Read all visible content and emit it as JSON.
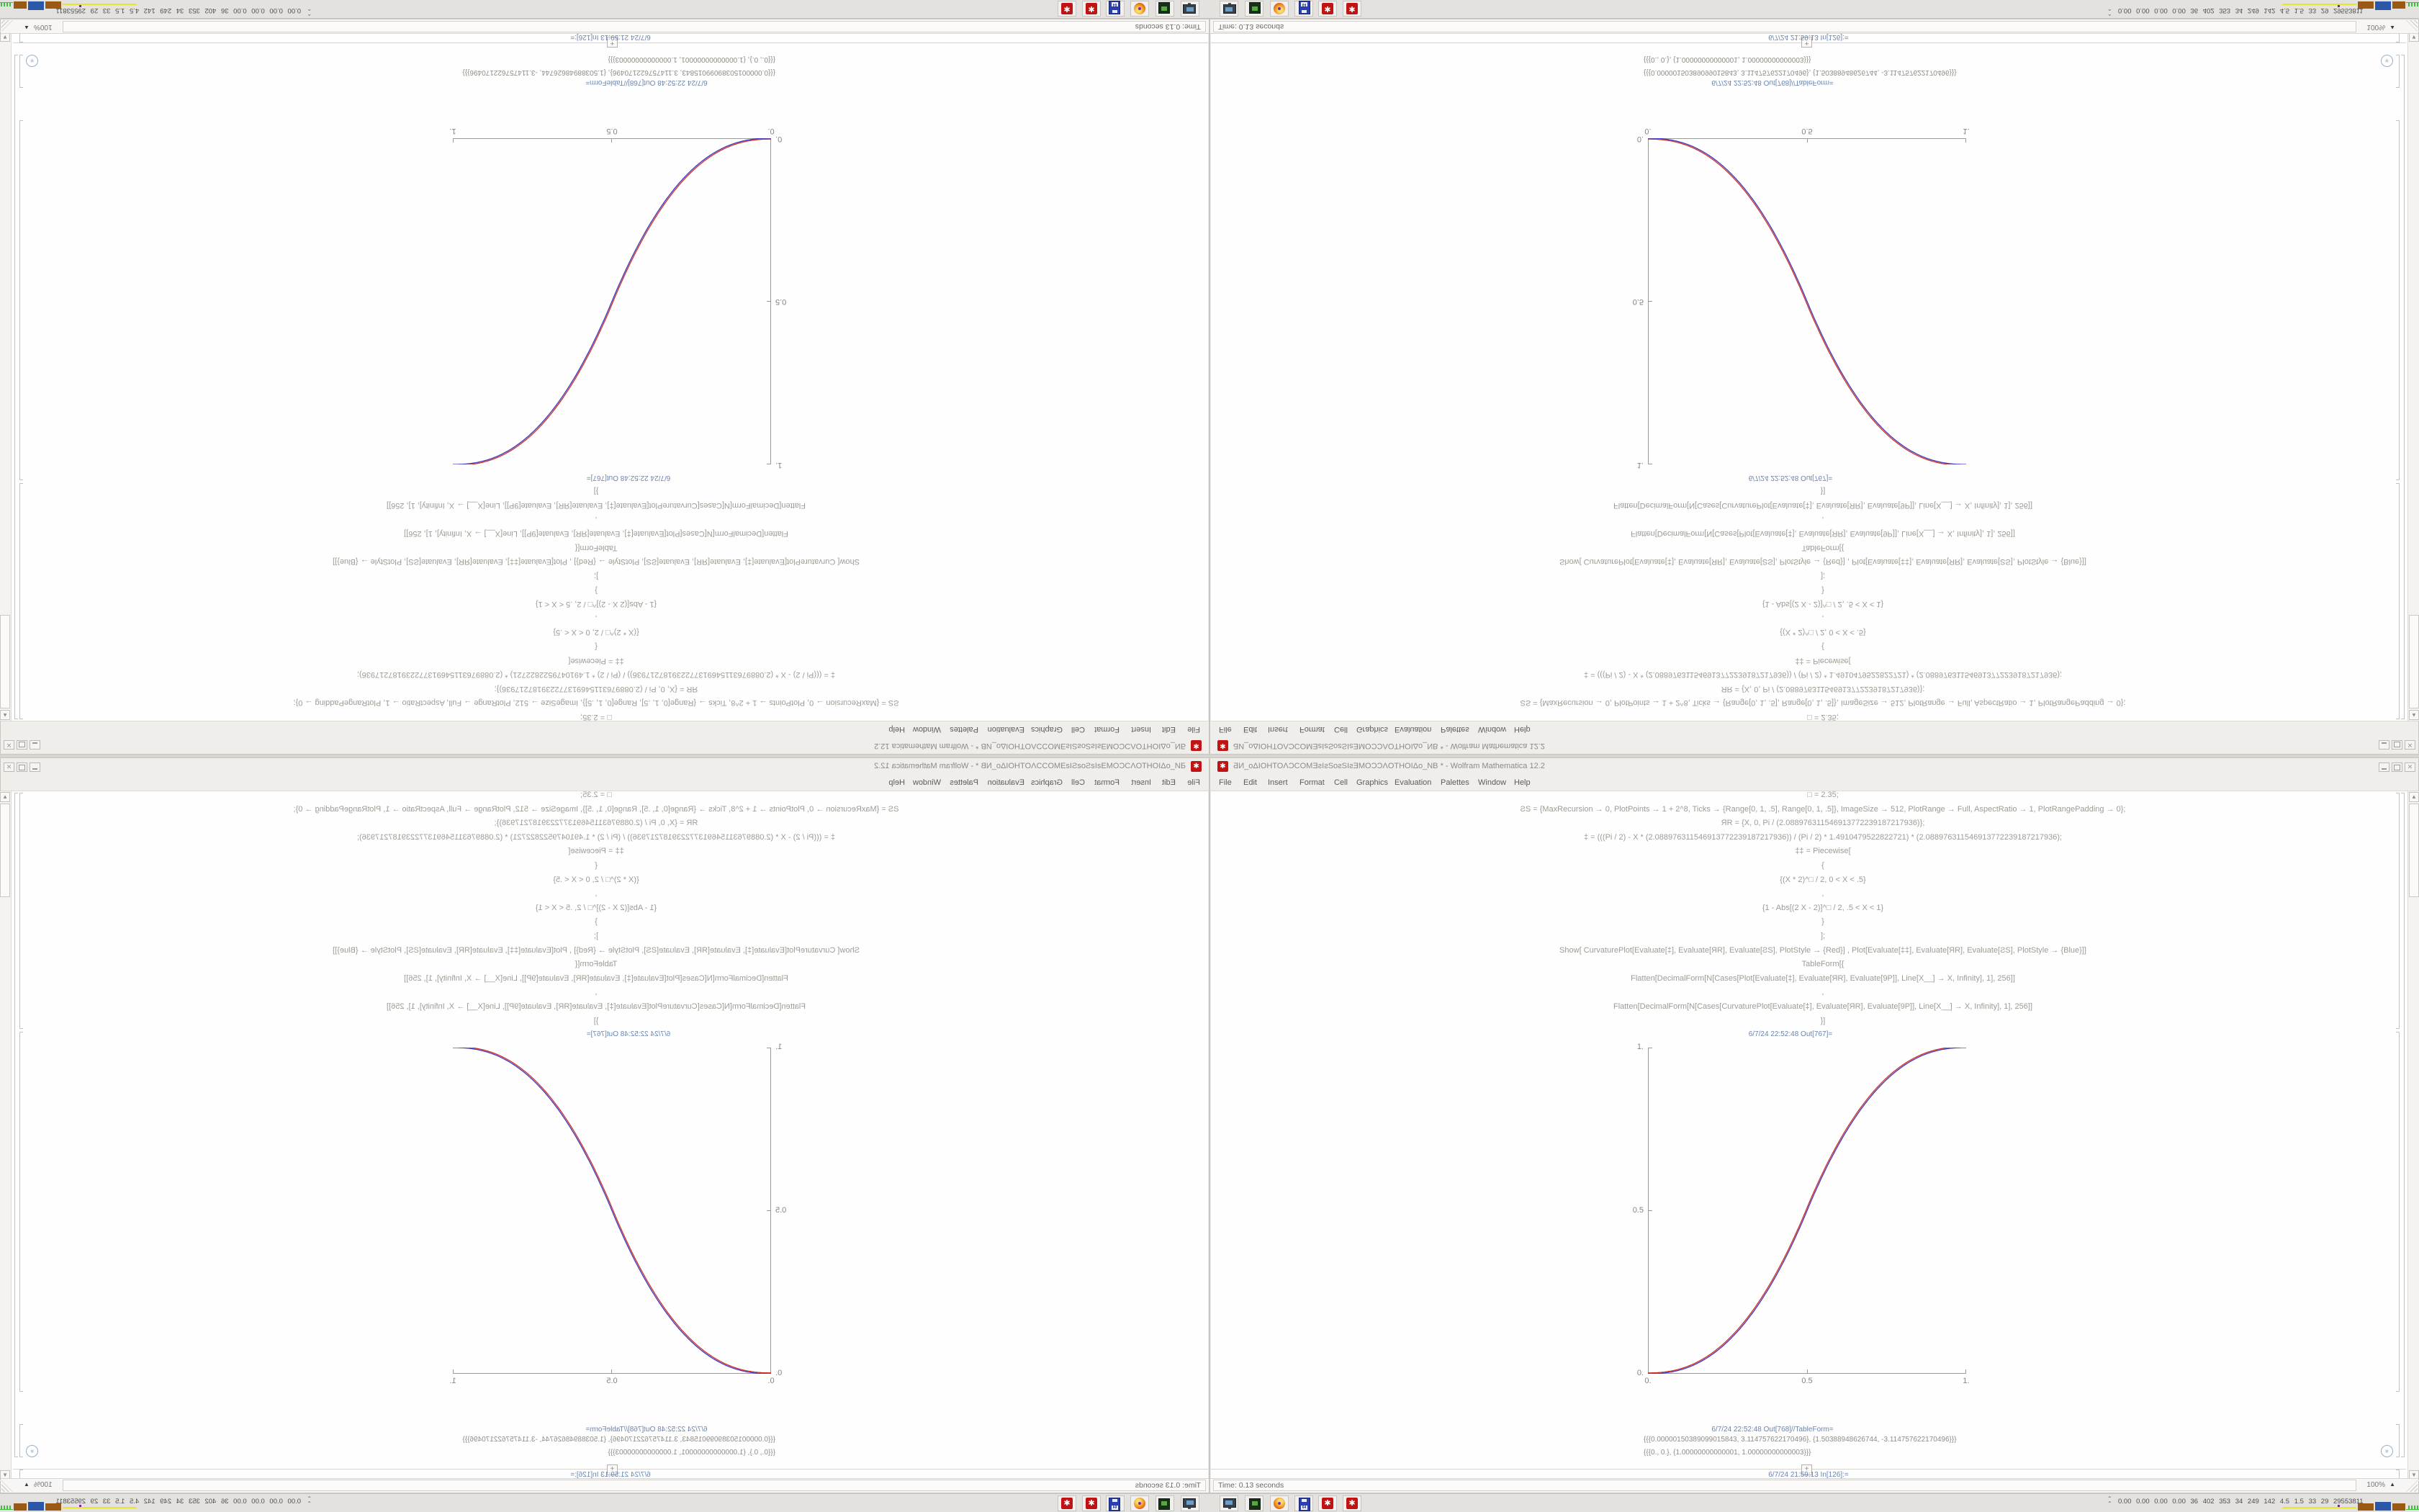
{
  "window": {
    "title": "ƋИ_ᴏΔIOHTOΛƆCOMƎƨIƨSᴏƨSIƨƎMOƆƆΛOTHOIΔᴏ_NB * - Wolfram Mathematica 12.2",
    "menu": [
      "File",
      "Edit",
      "Insert",
      "Format",
      "Cell",
      "Graphics",
      "Evaluation",
      "Palettes",
      "Window",
      "Help"
    ]
  },
  "icons": {
    "close": "✕",
    "scroll_up": "▲",
    "scroll_down": "▼",
    "more": "»",
    "tray_chevron_top": "⌃",
    "tray_chevron_bottom": "⌃",
    "app_glyph": "✱",
    "floppy_label": "64",
    "plus": "+",
    "zoom_caret": "▲"
  },
  "notebook": {
    "input_lines": [
      "□ = 2.35;",
      "ƧS = {MaxRecursion → 0, PlotPoints → 1 + 2^8, Ticks → {Range[0, 1, .5], Range[0, 1, .5]}, ImageSize → 512, PlotRange → Full, AspectRatio → 1, PlotRangePadding → 0};",
      "ЯR = {X, 0, Pi / (2.088976311546913772239187217936)};",
      "‡ = (((Pi / 2) - X * (2.088976311546913772239187217936)) / (Pi / 2) * 1.4910479522822721) * (2.088976311546913772239187217936);",
      "‡‡ = Piecewise[",
      "{",
      "{(X * 2)^□ / 2, 0 < X < .5}",
      ",",
      "{1 - Abs[(2 X - 2)]^□ / 2, .5 < X < 1}",
      "}",
      "];",
      "Show[  CurvaturePlot[Evaluate[‡], Evaluate[ЯR], Evaluate[ƧS], PlotStyle → {Red}]  ,  Plot[Evaluate[‡‡], Evaluate[ЯR], Evaluate[ƧS], PlotStyle → {Blue}]]",
      "TableForm[{",
      "Flatten[DecimalForm[N[Cases[Plot[Evaluate[‡], Evaluate[ЯR], Evaluate[9P]], Line[X__] → X, Infinity], 1], 256]]",
      ",",
      "Flatten[DecimalForm[N[Cases[CurvaturePlot[Evaluate[‡], Evaluate[ЯR], Evaluate[9P]], Line[X__] → X, Infinity], 1], 256]]",
      "}]"
    ],
    "out_plot_label": "6/7/24 22:52:48 Out[767]=",
    "out_table_label": "6/7/24 22:52:48 Out[768]//TableForm=",
    "out_table_rows": [
      "{{{0.00000150389099015843, 3.114757622170496}, {1.50388948626744, -3.114757622170496}}}",
      "{{{0., 0.}, {1.00000000000001, 1.00000000000003}}}"
    ],
    "next_in_label": "6/7/24 21:59:13 In[126]:="
  },
  "status_bar": {
    "message": "Time: 0.13 seconds",
    "zoom": "100%"
  },
  "taskbar": {
    "tray_numbers": "0.00 0.00 0.00 0.00 36 402 353 34 249 142 4.5 1.5 33 29 29553811",
    "icon_names": [
      "display-icon",
      "package-icon",
      "firefox-icon",
      "floppy-64-icon",
      "mathematica-icon",
      "mathematica-icon"
    ]
  },
  "chart_data": {
    "type": "line",
    "title": "Out[767]=",
    "x": [
      0,
      0.125,
      0.25,
      0.375,
      0.5,
      0.625,
      0.75,
      0.875,
      1
    ],
    "series": [
      {
        "name": "CurvaturePlot[‡] (Red)",
        "color": "#d03028",
        "values": [
          0,
          0.019,
          0.098,
          0.255,
          0.5,
          0.745,
          0.902,
          0.981,
          1
        ]
      },
      {
        "name": "Plot[‡‡] (Blue)",
        "color": "#4038c0",
        "values": [
          0,
          0.019,
          0.098,
          0.255,
          0.5,
          0.745,
          0.902,
          0.981,
          1
        ]
      }
    ],
    "piecewise_exponent": 2.35,
    "xticks": [
      "0.",
      "0.5",
      "1."
    ],
    "yticks": [
      "0.",
      "0.5",
      "1."
    ],
    "xlim": [
      0,
      1
    ],
    "ylim": [
      0,
      1
    ],
    "grid": false,
    "legend": "none"
  },
  "layout_note": "Screen shows four mirrored copies of one 1680x1050 Mathematica desktop: bottom-right original, bottom-left horizontal mirror, top-right vertical mirror, top-left 180° rotation."
}
